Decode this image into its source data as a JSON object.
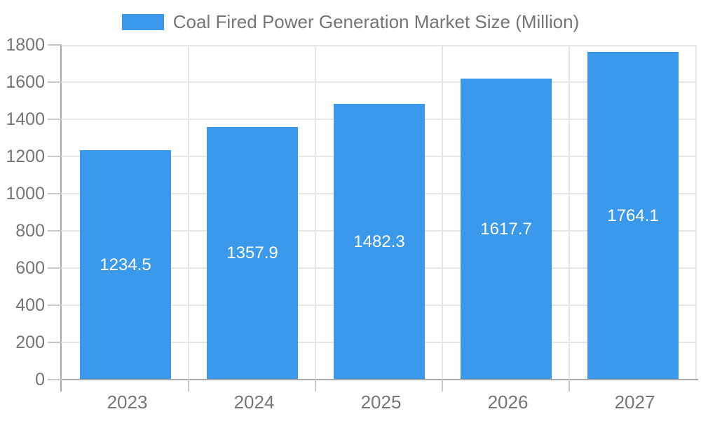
{
  "chart_data": {
    "type": "bar",
    "title": "",
    "legend_label": "Coal Fired Power Generation Market Size (Million)",
    "legend_position": "top-center",
    "categories": [
      "2023",
      "2024",
      "2025",
      "2026",
      "2027"
    ],
    "series": [
      {
        "name": "Coal Fired Power Generation Market Size (Million)",
        "values": [
          1234.5,
          1357.9,
          1482.3,
          1617.7,
          1764.1
        ]
      }
    ],
    "value_labels": [
      "1234.5",
      "1357.9",
      "1482.3",
      "1617.7",
      "1764.1"
    ],
    "xlabel": "",
    "ylabel": "",
    "ylim": [
      0,
      1800
    ],
    "yticks": [
      0,
      200,
      400,
      600,
      800,
      1000,
      1200,
      1400,
      1600,
      1800
    ],
    "grid": "horizontal and vertical light gridlines",
    "colors": {
      "bar": "#3b99ec",
      "bar_value_text": "#ffffff",
      "axis_text": "#757575",
      "legend_text": "#757575",
      "gridline": "#e6e6e6",
      "axis_line": "#a9a9a9",
      "tick": "#c9c9c9",
      "background": "#ffffff"
    }
  }
}
